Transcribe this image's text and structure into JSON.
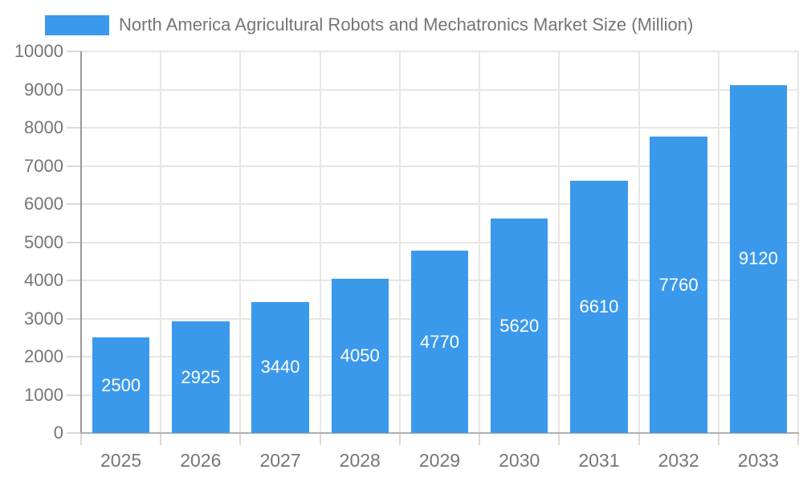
{
  "legend": {
    "label": "North America Agricultural Robots and Mechatronics Market Size (Million)",
    "swatch_color": "#3B99EC"
  },
  "chart_data": {
    "type": "bar",
    "title": "North America Agricultural Robots and Mechatronics Market Size (Million)",
    "categories": [
      "2025",
      "2026",
      "2027",
      "2028",
      "2029",
      "2030",
      "2031",
      "2032",
      "2033"
    ],
    "values": [
      2500,
      2925,
      3440,
      4050,
      4770,
      5620,
      6610,
      7760,
      9120
    ],
    "xlabel": "",
    "ylabel": "",
    "ylim": [
      0,
      10000
    ],
    "ytick_step": 1000,
    "grid": true,
    "legend_position": "top-left",
    "bar_color": "#3B99EC",
    "bar_value_label_color": "#ffffff",
    "axis_text_color": "#757575",
    "gridline_color": "#e6e6e6"
  }
}
